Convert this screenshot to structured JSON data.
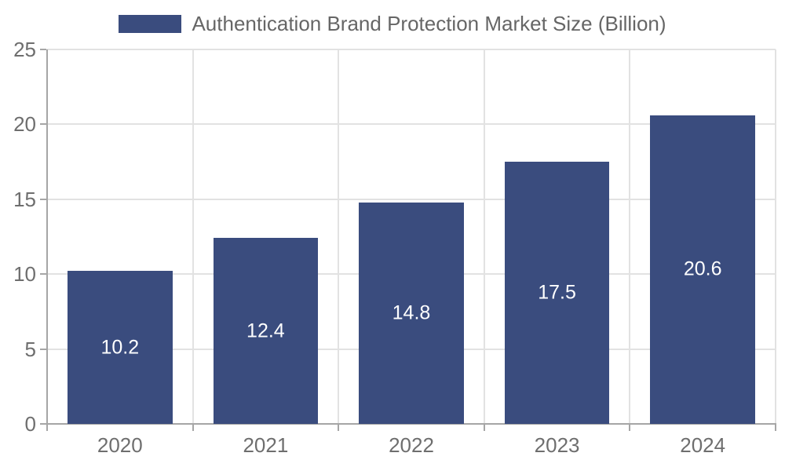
{
  "legend": {
    "label": "Authentication Brand Protection Market Size (Billion)"
  },
  "chart_data": {
    "type": "bar",
    "title": "Authentication Brand Protection Market Size (Billion)",
    "categories": [
      "2020",
      "2021",
      "2022",
      "2023",
      "2024"
    ],
    "values": [
      10.2,
      12.4,
      14.8,
      17.5,
      20.6
    ],
    "value_labels": [
      "10.2",
      "12.4",
      "14.8",
      "17.5",
      "20.6"
    ],
    "xlabel": "",
    "ylabel": "",
    "ylim": [
      0,
      25
    ],
    "yticks": [
      0,
      5,
      10,
      15,
      20,
      25
    ],
    "grid": true,
    "legend_position": "top-center",
    "value_label_position": "inside-center"
  },
  "colors": {
    "bar": "#3a4c7e",
    "grid_line": "#e2e2e2",
    "axis_line": "#a6a6a6",
    "axis_text": "#6e6e6e",
    "legend_text": "#666666",
    "value_text": "#ffffff",
    "background": "#ffffff"
  }
}
